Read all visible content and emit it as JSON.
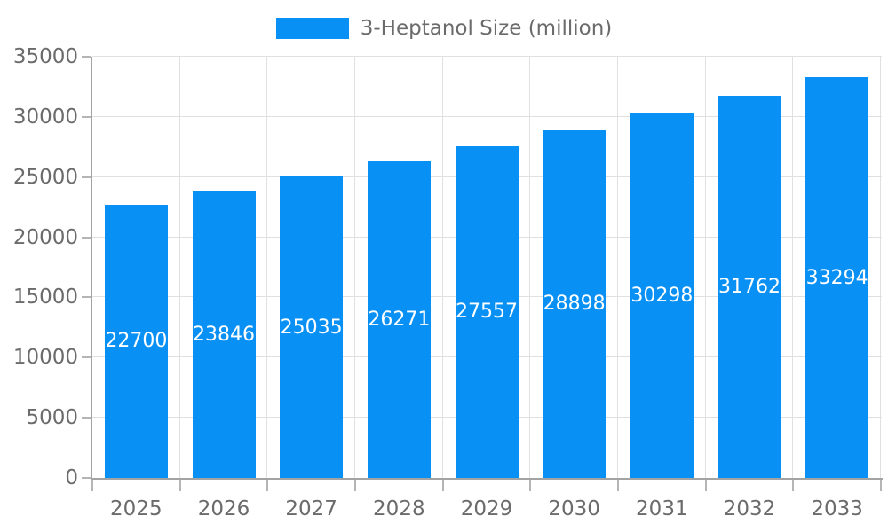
{
  "chart_data": {
    "type": "bar",
    "title": "3-Heptanol Size (million)",
    "legend": [
      "3-Heptanol Size (million)"
    ],
    "legend_position": "top-center",
    "categories": [
      "2025",
      "2026",
      "2027",
      "2028",
      "2029",
      "2030",
      "2031",
      "2032",
      "2033"
    ],
    "values": [
      22700,
      23846,
      25035,
      26271,
      27557,
      28898,
      30298,
      31762,
      33294
    ],
    "value_labels_shown": true,
    "value_label_position": "inside-center",
    "xlabel": "",
    "ylabel": "",
    "ylim": [
      0,
      35000
    ],
    "ytick_labels": [
      "0",
      "5000",
      "10000",
      "15000",
      "20000",
      "25000",
      "30000",
      "35000"
    ],
    "grid": true,
    "colors": {
      "bar": "#0990f5",
      "value_label": "#ffffff",
      "grid_line": "#e0e0e0",
      "axis_line": "#a3a3a3",
      "tick_mark": "#b5b5b5",
      "axis_text": "#6b6b6b",
      "legend_text": "#6b6b6b",
      "background": "#ffffff"
    }
  }
}
